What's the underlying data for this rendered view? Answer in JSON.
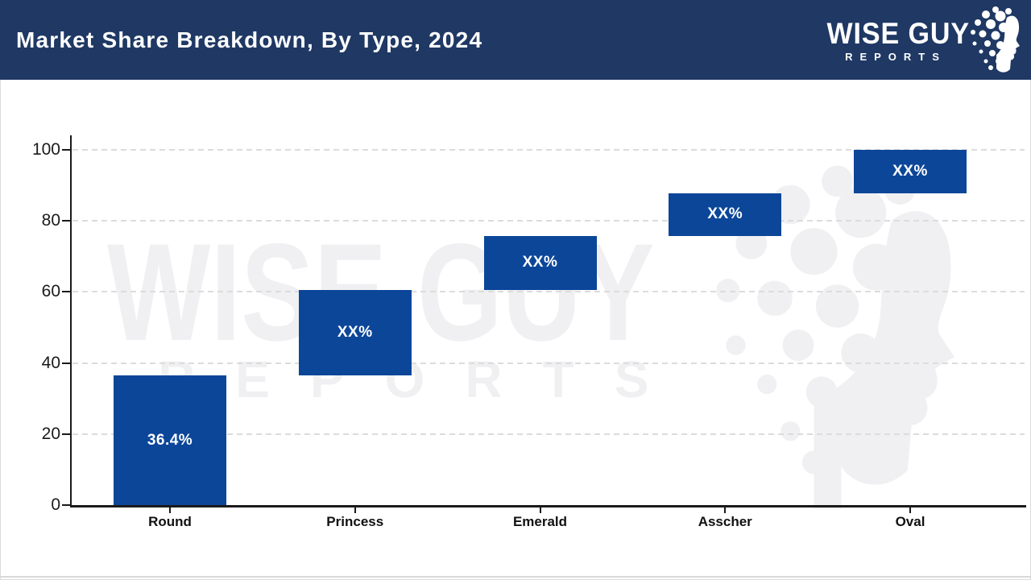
{
  "header": {
    "title": "Market Share Breakdown, By Type, 2024",
    "bg_color": "#1F3864",
    "logo": {
      "line1": "WISE GUY",
      "line2": "REPORTS"
    }
  },
  "watermark": {
    "line1": "WISE GUY",
    "line2": "REPORTS"
  },
  "chart_data": {
    "type": "bar",
    "subtype": "waterfall",
    "title": "Market Share Breakdown, By Type, 2024",
    "categories": [
      "Round",
      "Princess",
      "Emerald",
      "Asscher",
      "Oval"
    ],
    "segments": [
      {
        "category": "Round",
        "start": 0,
        "end": 36.4,
        "label": "36.4%"
      },
      {
        "category": "Princess",
        "start": 36.4,
        "end": 60.5,
        "label": "XX%"
      },
      {
        "category": "Emerald",
        "start": 60.5,
        "end": 75.8,
        "label": "XX%"
      },
      {
        "category": "Asscher",
        "start": 75.8,
        "end": 87.8,
        "label": "XX%"
      },
      {
        "category": "Oval",
        "start": 87.8,
        "end": 100.0,
        "label": "XX%"
      }
    ],
    "increments": [
      36.4,
      24.1,
      15.3,
      12.0,
      12.2
    ],
    "xlabel": "",
    "ylabel": "",
    "ylim": [
      0,
      100
    ],
    "yticks": [
      0,
      20,
      40,
      60,
      80,
      100
    ],
    "grid": "dashed-horizontal",
    "legend": "none",
    "bar_color": "#0C4699",
    "bar_label_color": "#FFFFFF",
    "axis_color": "#1a1a1a"
  }
}
